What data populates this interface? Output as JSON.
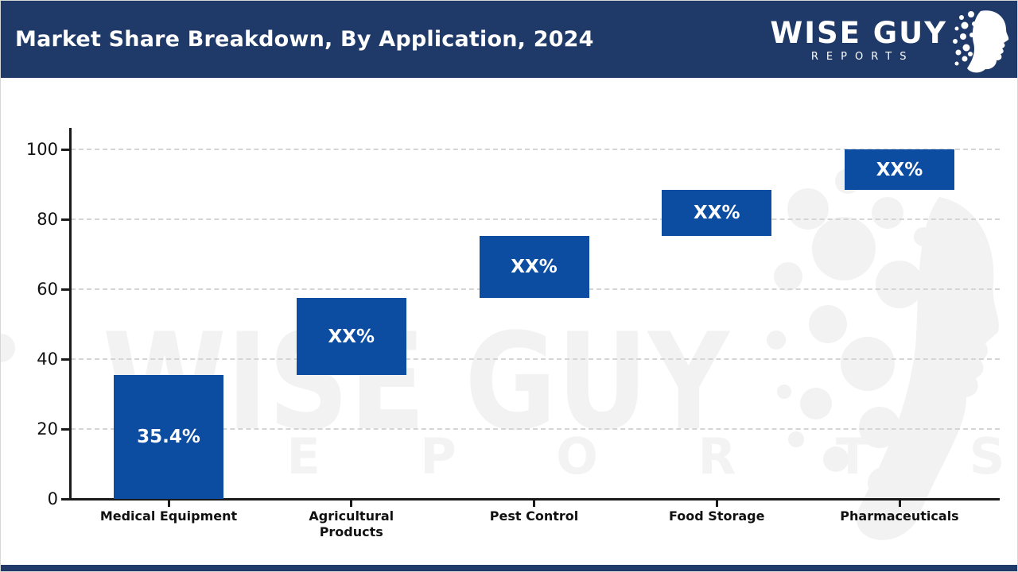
{
  "header": {
    "title": "Market Share Breakdown, By Application, 2024",
    "logo": {
      "line1": "WISE GUY",
      "line2": "REPORTS"
    }
  },
  "watermark": {
    "line1": "WISE GUY",
    "line2": "R E P O R T S"
  },
  "colors": {
    "header_bg": "#1F3A68",
    "bar": "#0C4DA2",
    "grid": "#D5D5D5",
    "axis": "#1A1A1A",
    "label": "#111111",
    "bar_label": "#FFFFFF",
    "watermark": "#F2F2F2"
  },
  "chart_data": {
    "type": "bar",
    "subtype": "waterfall",
    "title": "Market Share Breakdown, By Application, 2024",
    "categories": [
      "Medical Equipment",
      "Agricultural\nProducts",
      "Pest Control",
      "Food Storage",
      "Pharmaceuticals"
    ],
    "segments": [
      {
        "name": "Medical Equipment",
        "start": 0,
        "end": 35.4,
        "label": "35.4%"
      },
      {
        "name": "Agricultural Products",
        "start": 35.4,
        "end": 57.5,
        "label": "XX%"
      },
      {
        "name": "Pest Control",
        "start": 57.5,
        "end": 75.2,
        "label": "XX%"
      },
      {
        "name": "Food Storage",
        "start": 75.2,
        "end": 88.4,
        "label": "XX%"
      },
      {
        "name": "Pharmaceuticals",
        "start": 88.4,
        "end": 100,
        "label": "XX%"
      }
    ],
    "ylim": [
      0,
      105
    ],
    "yticks": [
      0,
      20,
      40,
      60,
      80,
      100
    ],
    "xlabel": "",
    "ylabel": "",
    "grid": "horizontal-dashed",
    "legend": "none",
    "bar_color": "#0C4DA2"
  }
}
